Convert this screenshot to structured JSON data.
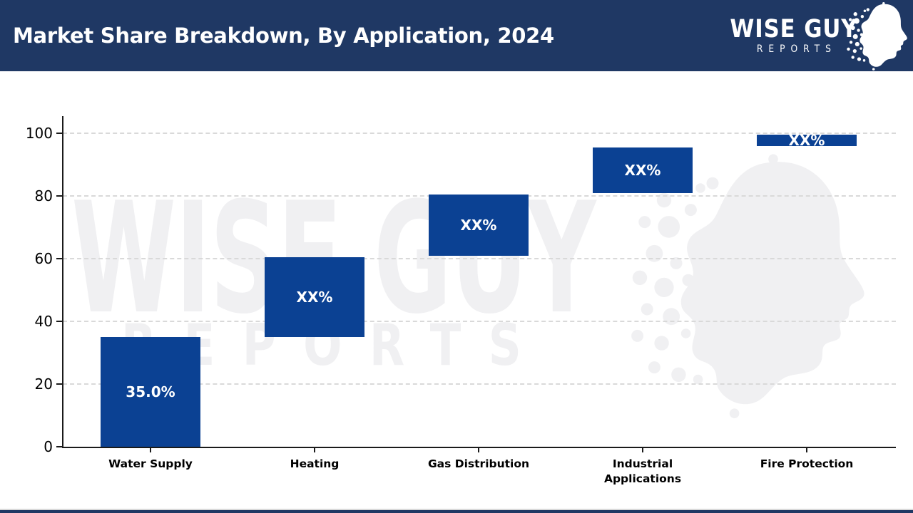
{
  "header": {
    "title": "Market Share Breakdown, By Application, 2024",
    "logo": {
      "line1": "WISE GUY",
      "line2": "REPORTS"
    }
  },
  "watermark": {
    "line1": "WISE GUY",
    "line2": "REPORTS"
  },
  "chart_data": {
    "type": "bar",
    "subtype": "waterfall",
    "title": "Market Share Breakdown, By Application, 2024",
    "xlabel": "",
    "ylabel": "",
    "ylim": [
      0,
      105
    ],
    "yticks": [
      0,
      20,
      40,
      60,
      80,
      100
    ],
    "grid": {
      "horizontal": true,
      "style": "dashed",
      "vertical": false
    },
    "legend": "none",
    "categories": [
      "Water Supply",
      "Heating",
      "Gas Distribution",
      "Industrial Applications",
      "Fire Protection"
    ],
    "segments": [
      {
        "category": "Water Supply",
        "start": 0,
        "end": 35,
        "label": "35.0%"
      },
      {
        "category": "Heating",
        "start": 35,
        "end": 60.5,
        "label": "XX%"
      },
      {
        "category": "Gas Distribution",
        "start": 61,
        "end": 80.5,
        "label": "XX%"
      },
      {
        "category": "Industrial Applications",
        "start": 81,
        "end": 95.5,
        "label": "XX%"
      },
      {
        "category": "Fire Protection",
        "start": 96,
        "end": 99.5,
        "label": "XX%"
      }
    ],
    "colors": {
      "bar": "#0b4193",
      "bar_label": "#ffffff",
      "grid": "#d9d9d9",
      "axis": "#1a1a1a",
      "tick_label": "#000000"
    }
  },
  "colors": {
    "header_bg": "#1f3864",
    "header_text": "#ffffff",
    "footer_bar": "#1f3864",
    "footer_line": "#d9d9d9",
    "watermark": "#f0f0f2",
    "page_bg": "#ffffff"
  }
}
